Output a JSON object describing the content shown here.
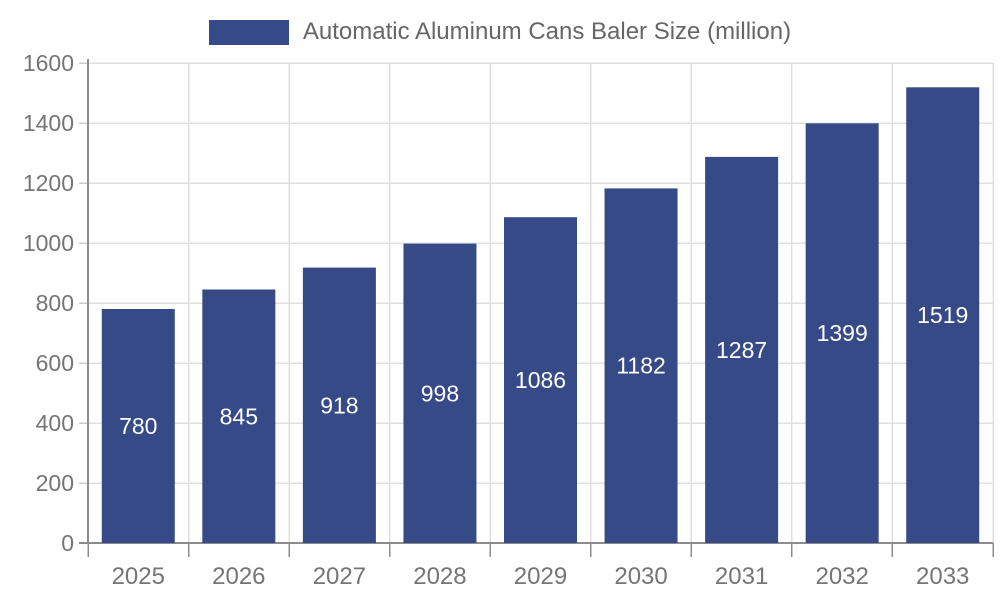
{
  "legend": {
    "label": "Automatic Aluminum Cans Baler Size (million)"
  },
  "chart_data": {
    "type": "bar",
    "title": "Automatic Aluminum Cans Baler Size (million)",
    "series_name": "Automatic Aluminum Cans Baler Size (million)",
    "categories": [
      "2025",
      "2026",
      "2027",
      "2028",
      "2029",
      "2030",
      "2031",
      "2032",
      "2033"
    ],
    "values": [
      780,
      845,
      918,
      998,
      1086,
      1182,
      1287,
      1399,
      1519
    ],
    "value_labels": [
      "780",
      "845",
      "918",
      "998",
      "1086",
      "1182",
      "1287",
      "1399",
      "1519"
    ],
    "y_tick_labels": [
      "0",
      "200",
      "400",
      "600",
      "800",
      "1000",
      "1200",
      "1400",
      "1600"
    ],
    "xlabel": "",
    "ylabel": "",
    "ylim": [
      0,
      1600
    ],
    "ytick_interval": 200,
    "grid": true,
    "legend_position": "top-center",
    "colors": {
      "bar": "#354a87",
      "value_label": "#ffffff",
      "axis_label": "#757575",
      "legend_text": "#666666",
      "gridline": "#e0e0e0",
      "axis_line": "#8c8c8c",
      "tick": "#cccccc",
      "background": "#ffffff"
    }
  }
}
